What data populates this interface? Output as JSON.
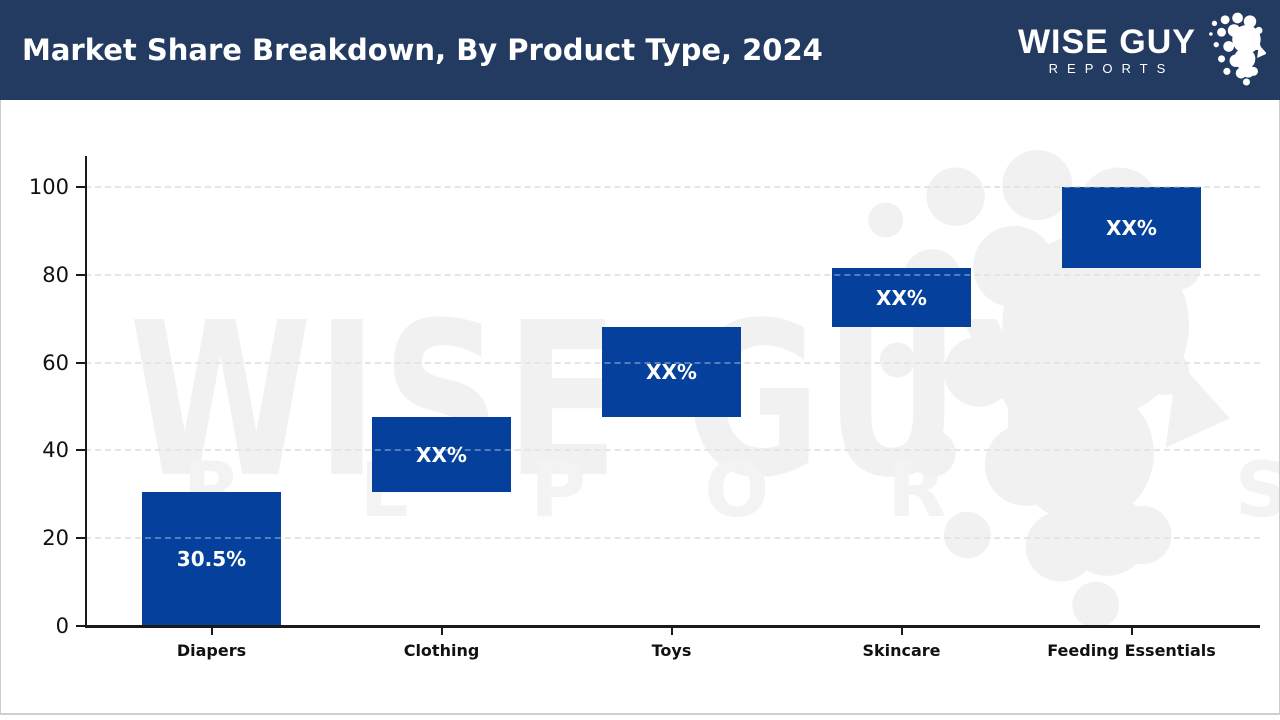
{
  "header": {
    "title": "Market Share Breakdown, By Product Type, 2024",
    "bg_color": "#233a61",
    "logo": {
      "line1": "WISE GUY",
      "line2": "REPORTS"
    }
  },
  "watermark": {
    "line1": "WISE GUY",
    "line2": "R E P O R T S"
  },
  "chart_data": {
    "type": "bar",
    "subtype": "waterfall",
    "title": "Market Share Breakdown, By Product Type, 2024",
    "categories": [
      "Diapers",
      "Clothing",
      "Toys",
      "Skincare",
      "Feeding Essentials"
    ],
    "bars": [
      {
        "category": "Diapers",
        "start": 0,
        "end": 30.5,
        "label": "30.5%"
      },
      {
        "category": "Clothing",
        "start": 30.5,
        "end": 47.5,
        "label": "XX%"
      },
      {
        "category": "Toys",
        "start": 47.5,
        "end": 68,
        "label": "XX%"
      },
      {
        "category": "Skincare",
        "start": 68,
        "end": 81.5,
        "label": "XX%"
      },
      {
        "category": "Feeding Essentials",
        "start": 81.5,
        "end": 100,
        "label": "XX%"
      }
    ],
    "yticks": [
      0,
      20,
      40,
      60,
      80,
      100
    ],
    "ylim": [
      0,
      107
    ],
    "xlabel": "",
    "ylabel": "",
    "grid": "horizontal-dashed",
    "legend": "none",
    "colors": {
      "bar": "#04409c",
      "bar_label": "#ffffff",
      "axis": "#1a1a1a",
      "grid": "#d9d9d9"
    }
  }
}
